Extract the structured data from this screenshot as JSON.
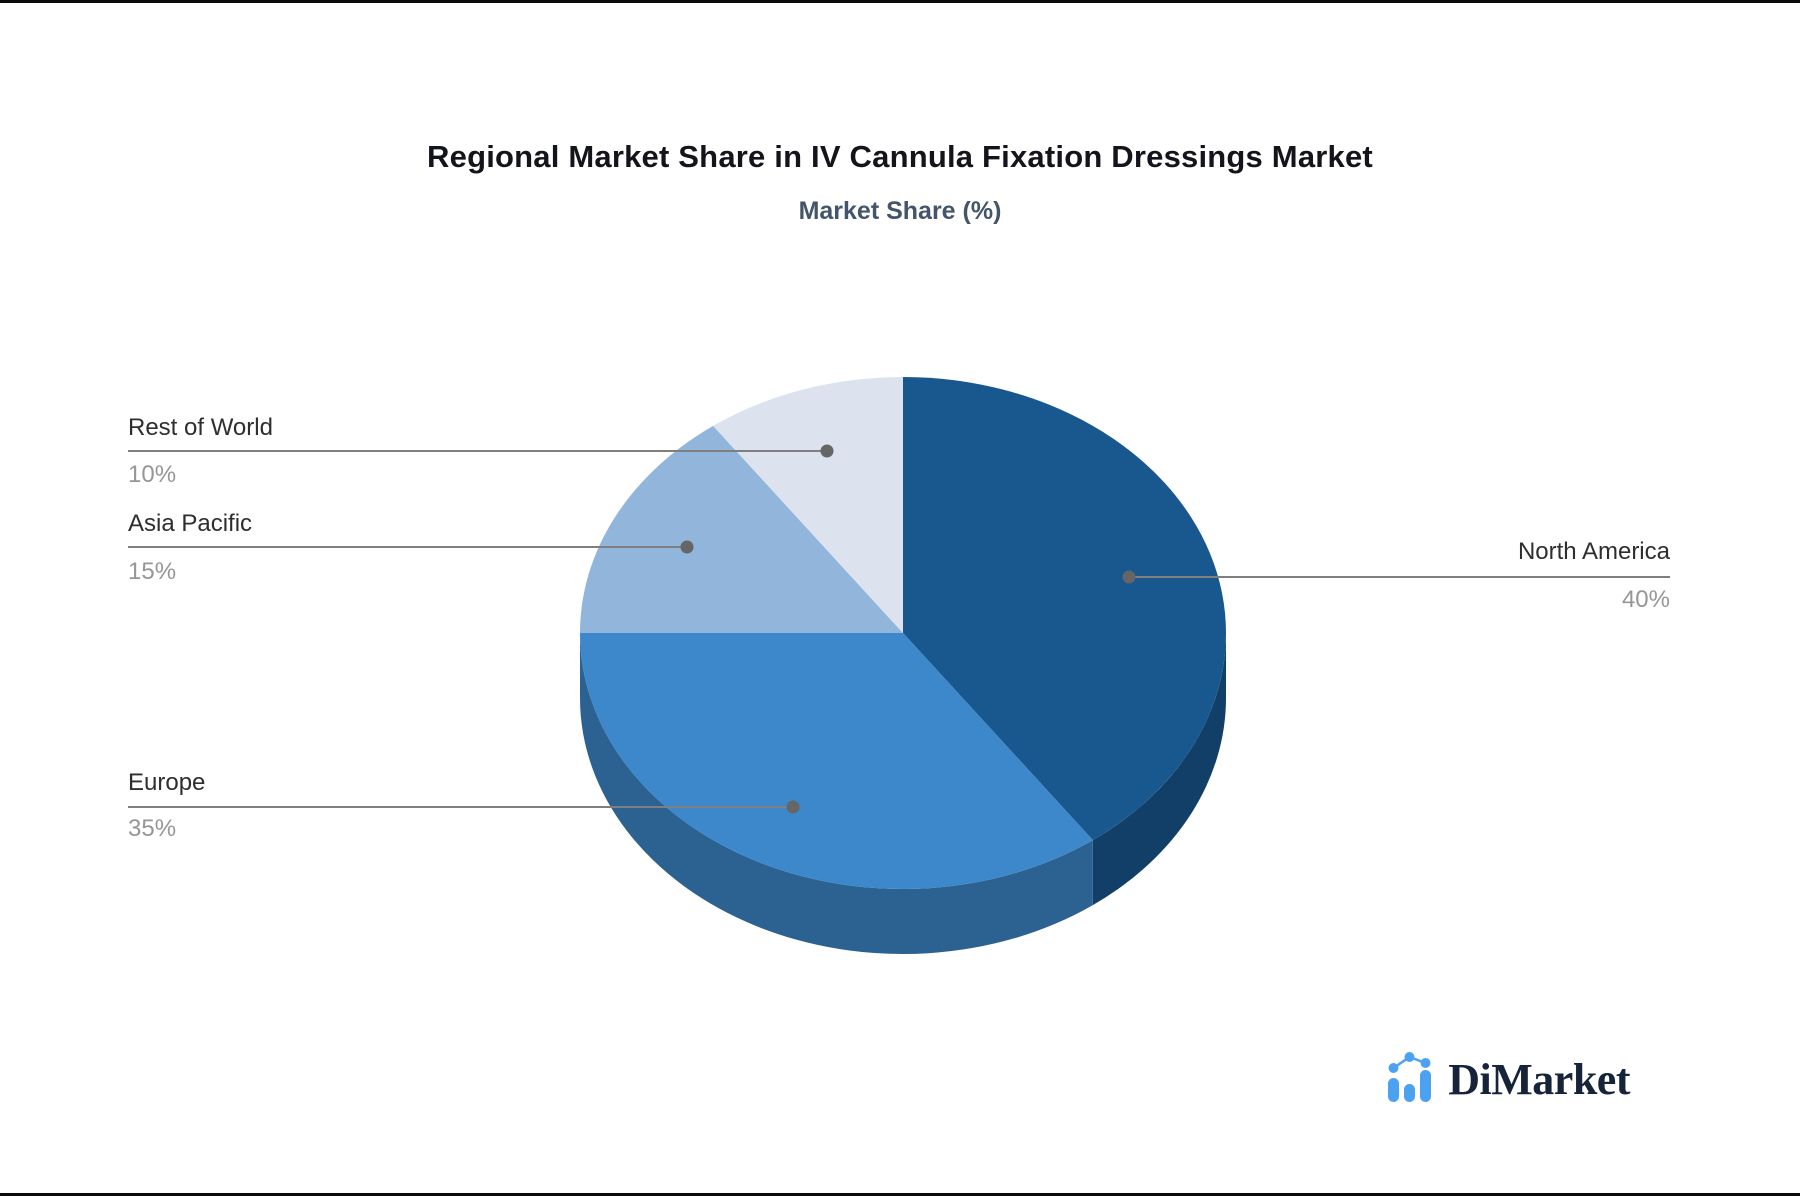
{
  "header": {
    "title": "Regional Market Share in IV Cannula Fixation Dressings Market",
    "subtitle": "Market Share (%)"
  },
  "chart_data": {
    "type": "pie",
    "title": "Regional Market Share in IV Cannula Fixation Dressings Market",
    "subtitle": "Market Share (%)",
    "unit": "%",
    "effect": "3d",
    "legend_position": "none",
    "label_style": "callout-lines",
    "start_angle_deg_clockwise_from_top": 0,
    "slices": [
      {
        "label": "North America",
        "value": 40,
        "display_value": "40%",
        "color": "#19588F"
      },
      {
        "label": "Europe",
        "value": 35,
        "display_value": "35%",
        "color": "#3C88CB"
      },
      {
        "label": "Asia Pacific",
        "value": 15,
        "display_value": "15%",
        "color": "#92B5DB"
      },
      {
        "label": "Rest of World",
        "value": 10,
        "display_value": "10%",
        "color": "#DCE3EF"
      }
    ]
  },
  "branding": {
    "name": "DiMarket",
    "icon": "bar-line-chart-icon",
    "icon_color": "#4DA1F1",
    "text_color": "#16243A"
  },
  "style": {
    "leader_line_color": "#7F7F7F",
    "dot_color": "#666666",
    "label_color": "#2E2E2E",
    "value_color": "#969696",
    "background": "#FFFFFF"
  }
}
